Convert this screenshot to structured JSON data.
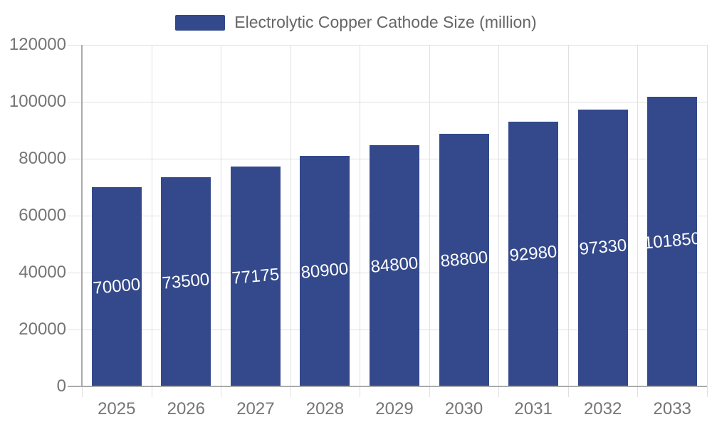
{
  "chart_data": {
    "type": "bar",
    "title": "Electrolytic Copper Cathode Size (million)",
    "legend": [
      "Electrolytic Copper Cathode Size (million)"
    ],
    "legend_position": "top",
    "categories": [
      "2025",
      "2026",
      "2027",
      "2028",
      "2029",
      "2030",
      "2031",
      "2032",
      "2033"
    ],
    "values": [
      70000,
      73500,
      77175,
      80900,
      84800,
      88800,
      92980,
      97330,
      101850
    ],
    "xlabel": "",
    "ylabel": "",
    "ylim": [
      0,
      120000
    ],
    "y_ticks": [
      0,
      20000,
      40000,
      60000,
      80000,
      100000,
      120000
    ],
    "grid": true,
    "bar_labels_visible": true,
    "colors": {
      "bar": "#34498B",
      "grid_line": "#E0E0E0",
      "axis_line": "#AAAAAA",
      "axis_text": "#757575",
      "legend_text": "#666666",
      "bar_label_text": "#FFFFFF",
      "background": "#FFFFFF"
    }
  }
}
